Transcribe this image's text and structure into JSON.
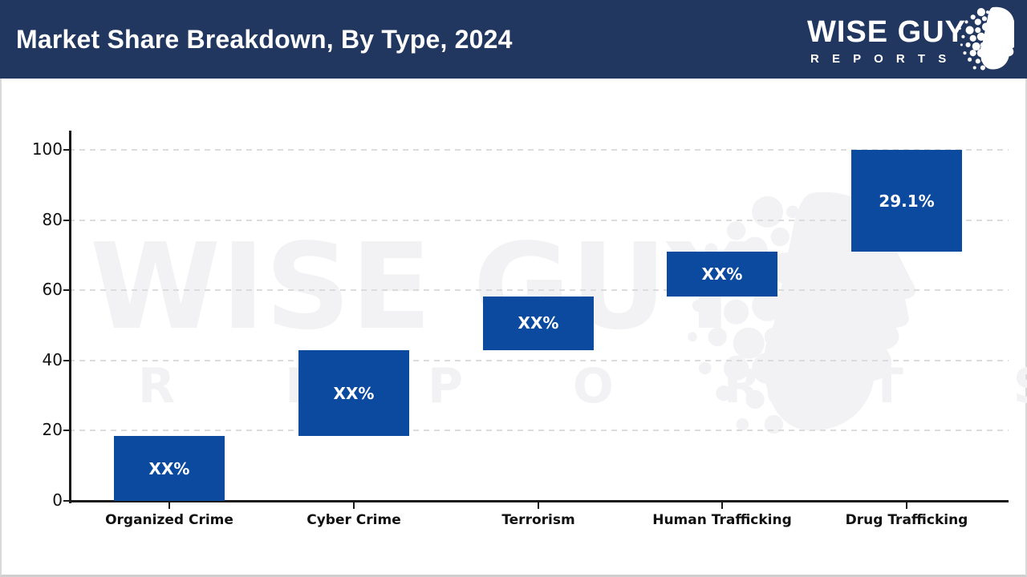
{
  "header": {
    "title": "Market Share Breakdown, By Type, 2024",
    "logo": {
      "line1": "WISE GUY",
      "line2": "R E P O R T S"
    }
  },
  "watermark": {
    "line1": "WISE GUY",
    "line2": "R E P O R T S"
  },
  "chart_data": {
    "type": "bar",
    "subtype": "waterfall",
    "title": "Market Share Breakdown, By Type, 2024",
    "unit": "%",
    "categories": [
      "Organized Crime",
      "Cyber Crime",
      "Terrorism",
      "Human Trafficking",
      "Drug Trafficking"
    ],
    "segments": [
      {
        "category": "Organized Crime",
        "start": 0,
        "end": 18.4,
        "label": "XX%"
      },
      {
        "category": "Cyber Crime",
        "start": 18.4,
        "end": 43.0,
        "label": "XX%"
      },
      {
        "category": "Terrorism",
        "start": 43.0,
        "end": 58.2,
        "label": "XX%"
      },
      {
        "category": "Human Trafficking",
        "start": 58.2,
        "end": 70.9,
        "label": "XX%"
      },
      {
        "category": "Drug Trafficking",
        "start": 70.9,
        "end": 100,
        "label": "29.1%"
      }
    ],
    "yticks": [
      0,
      20,
      40,
      60,
      80,
      100
    ],
    "ylim": [
      0,
      105
    ],
    "xlabel": "",
    "ylabel": "",
    "grid": "horizontal-dashed",
    "legend": "none",
    "colors": {
      "bar": "#0b4a9e",
      "grid": "#dcdcdc",
      "axis": "#1a1a1a",
      "bar_label": "#ffffff",
      "header_bg": "#213760"
    }
  }
}
